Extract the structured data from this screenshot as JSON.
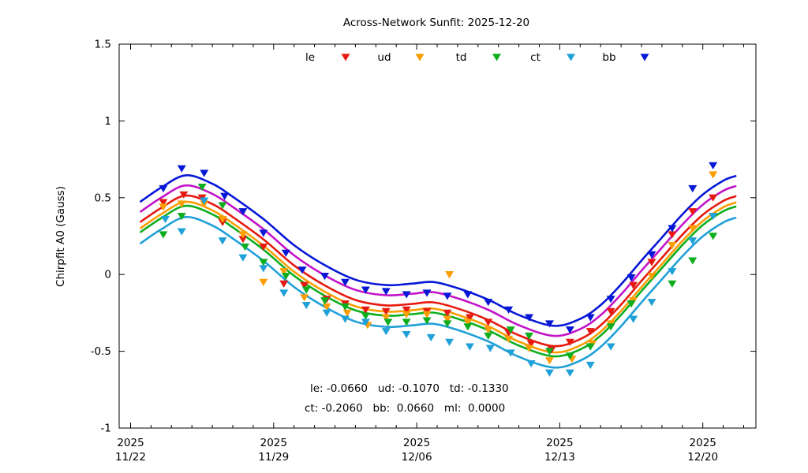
{
  "chart_data": {
    "type": "line+scatter",
    "title": "Across-Network Sunfit: 2025-12-20",
    "ylabel": "Chirpfit A0 (Gauss)",
    "marker": "triangle-down",
    "grid": false,
    "legend_position": "top-inside-horizontal",
    "x_axis": {
      "unit": "days since 2025-11-22",
      "range_days": [
        -0.56,
        30.6
      ],
      "minor_tick_every_days": 1,
      "major_ticks": [
        {
          "t": 0,
          "year": "2025",
          "date": "11/22"
        },
        {
          "t": 7,
          "year": "2025",
          "date": "11/29"
        },
        {
          "t": 14,
          "year": "2025",
          "date": "12/06"
        },
        {
          "t": 21,
          "year": "2025",
          "date": "12/13"
        },
        {
          "t": 28,
          "year": "2025",
          "date": "12/20"
        }
      ]
    },
    "y_axis": {
      "range": [
        -1,
        1.5
      ],
      "ticks": [
        {
          "v": 1.5,
          "label": "1.5"
        },
        {
          "v": 1.0,
          "label": "1"
        },
        {
          "v": 0.5,
          "label": "0.5"
        },
        {
          "v": 0.0,
          "label": "0"
        },
        {
          "v": -0.5,
          "label": "-0.5"
        },
        {
          "v": -1.0,
          "label": "-1"
        }
      ]
    },
    "legend": [
      {
        "id": "le",
        "label": "le",
        "color": "#e61a10"
      },
      {
        "id": "ud",
        "label": "ud",
        "color": "#fb9e04"
      },
      {
        "id": "td",
        "label": "td",
        "color": "#0cae1e"
      },
      {
        "id": "ct",
        "label": "ct",
        "color": "#1fa0d8"
      },
      {
        "id": "bb",
        "label": "bb",
        "color": "#0617d6"
      }
    ],
    "base_curve_ml": {
      "comment": "shared chirp-fit shape; each network curve = base + offset",
      "t": [
        0.5,
        1.5,
        2.7,
        4.0,
        5.0,
        6.5,
        8.0,
        9.5,
        11.0,
        12.5,
        13.8,
        14.8,
        16.0,
        17.5,
        19.0,
        20.7,
        22.0,
        23.0,
        24.0,
        25.0,
        26.0,
        27.0,
        28.0,
        29.0,
        29.6
      ],
      "v": [
        0.41,
        0.5,
        0.58,
        0.525,
        0.44,
        0.295,
        0.125,
        -0.005,
        -0.1,
        -0.135,
        -0.125,
        -0.115,
        -0.155,
        -0.23,
        -0.33,
        -0.4,
        -0.355,
        -0.265,
        -0.13,
        0.025,
        0.175,
        0.325,
        0.455,
        0.545,
        0.575
      ]
    },
    "series": [
      {
        "id": "ct",
        "color": "#1fa0d8",
        "offset": -0.206,
        "points": [
          [
            1.7,
            0.36
          ],
          [
            2.5,
            0.28
          ],
          [
            3.6,
            0.48
          ],
          [
            4.5,
            0.22
          ],
          [
            5.5,
            0.11
          ],
          [
            6.5,
            0.04
          ],
          [
            7.5,
            -0.12
          ],
          [
            8.6,
            -0.2
          ],
          [
            9.6,
            -0.25
          ],
          [
            10.5,
            -0.29
          ],
          [
            11.5,
            -0.31
          ],
          [
            12.5,
            -0.37
          ],
          [
            13.5,
            -0.39
          ],
          [
            14.7,
            -0.41
          ],
          [
            15.6,
            -0.44
          ],
          [
            16.6,
            -0.47
          ],
          [
            17.6,
            -0.48
          ],
          [
            18.6,
            -0.51
          ],
          [
            19.6,
            -0.58
          ],
          [
            20.5,
            -0.64
          ],
          [
            21.5,
            -0.64
          ],
          [
            22.5,
            -0.59
          ],
          [
            23.5,
            -0.47
          ],
          [
            24.6,
            -0.29
          ],
          [
            25.5,
            -0.18
          ],
          [
            26.5,
            0.02
          ],
          [
            27.5,
            0.22
          ],
          [
            28.5,
            0.38
          ]
        ]
      },
      {
        "id": "td",
        "color": "#0cae1e",
        "offset": -0.133,
        "points": [
          [
            1.6,
            0.26
          ],
          [
            2.5,
            0.38
          ],
          [
            3.5,
            0.57
          ],
          [
            4.5,
            0.45
          ],
          [
            5.6,
            0.18
          ],
          [
            6.5,
            0.08
          ],
          [
            7.6,
            -0.01
          ],
          [
            8.6,
            -0.1
          ],
          [
            9.5,
            -0.17
          ],
          [
            10.5,
            -0.21
          ],
          [
            11.5,
            -0.27
          ],
          [
            12.6,
            -0.31
          ],
          [
            13.5,
            -0.31
          ],
          [
            14.5,
            -0.3
          ],
          [
            15.5,
            -0.32
          ],
          [
            16.5,
            -0.34
          ],
          [
            17.5,
            -0.4
          ],
          [
            18.6,
            -0.36
          ],
          [
            19.5,
            -0.4
          ],
          [
            20.5,
            -0.5
          ],
          [
            21.5,
            -0.53
          ],
          [
            22.5,
            -0.47
          ],
          [
            23.5,
            -0.34
          ],
          [
            24.5,
            -0.19
          ],
          [
            26.5,
            -0.06
          ],
          [
            27.5,
            0.09
          ],
          [
            28.5,
            0.25
          ]
        ]
      },
      {
        "id": "ud",
        "color": "#fb9e04",
        "offset": -0.107,
        "points": [
          [
            1.6,
            0.44
          ],
          [
            2.5,
            0.46
          ],
          [
            3.6,
            0.46
          ],
          [
            4.5,
            0.36
          ],
          [
            5.5,
            0.26
          ],
          [
            6.5,
            -0.05
          ],
          [
            7.5,
            0.02
          ],
          [
            8.5,
            -0.15
          ],
          [
            9.6,
            -0.21
          ],
          [
            10.6,
            -0.25
          ],
          [
            11.6,
            -0.33
          ],
          [
            12.5,
            -0.28
          ],
          [
            13.5,
            -0.26
          ],
          [
            14.5,
            -0.26
          ],
          [
            15.5,
            -0.29
          ],
          [
            15.6,
            0.0
          ],
          [
            16.5,
            -0.31
          ],
          [
            17.5,
            -0.36
          ],
          [
            18.5,
            -0.42
          ],
          [
            19.5,
            -0.48
          ],
          [
            20.5,
            -0.56
          ],
          [
            21.6,
            -0.55
          ],
          [
            22.6,
            -0.45
          ],
          [
            23.5,
            -0.32
          ],
          [
            24.6,
            -0.17
          ],
          [
            25.5,
            -0.01
          ],
          [
            26.5,
            0.19
          ],
          [
            27.5,
            0.3
          ],
          [
            28.5,
            0.65
          ]
        ]
      },
      {
        "id": "le",
        "color": "#e61a10",
        "offset": -0.066,
        "points": [
          [
            1.6,
            0.47
          ],
          [
            2.6,
            0.52
          ],
          [
            3.5,
            0.5
          ],
          [
            4.5,
            0.34
          ],
          [
            5.5,
            0.23
          ],
          [
            6.5,
            0.18
          ],
          [
            7.5,
            -0.06
          ],
          [
            8.5,
            -0.07
          ],
          [
            9.6,
            -0.16
          ],
          [
            10.5,
            -0.19
          ],
          [
            11.5,
            -0.23
          ],
          [
            12.5,
            -0.24
          ],
          [
            13.5,
            -0.23
          ],
          [
            14.5,
            -0.24
          ],
          [
            15.5,
            -0.25
          ],
          [
            16.6,
            -0.28
          ],
          [
            17.5,
            -0.31
          ],
          [
            18.5,
            -0.38
          ],
          [
            19.6,
            -0.45
          ],
          [
            20.6,
            -0.49
          ],
          [
            21.5,
            -0.44
          ],
          [
            22.5,
            -0.37
          ],
          [
            23.5,
            -0.24
          ],
          [
            24.6,
            -0.07
          ],
          [
            25.5,
            0.08
          ],
          [
            26.5,
            0.26
          ],
          [
            27.5,
            0.41
          ],
          [
            28.5,
            0.5
          ]
        ]
      },
      {
        "id": "ml",
        "color": "#c214c8",
        "offset": 0.0,
        "points": []
      },
      {
        "id": "bb",
        "color": "#0617d6",
        "offset": 0.066,
        "points": [
          [
            1.6,
            0.56
          ],
          [
            2.5,
            0.69
          ],
          [
            3.6,
            0.66
          ],
          [
            4.6,
            0.51
          ],
          [
            5.5,
            0.41
          ],
          [
            6.5,
            0.27
          ],
          [
            7.6,
            0.14
          ],
          [
            8.4,
            0.03
          ],
          [
            9.5,
            -0.01
          ],
          [
            10.5,
            -0.05
          ],
          [
            11.5,
            -0.1
          ],
          [
            12.5,
            -0.11
          ],
          [
            13.5,
            -0.13
          ],
          [
            14.5,
            -0.12
          ],
          [
            15.5,
            -0.14
          ],
          [
            16.5,
            -0.13
          ],
          [
            17.5,
            -0.18
          ],
          [
            18.5,
            -0.23
          ],
          [
            19.5,
            -0.28
          ],
          [
            20.5,
            -0.32
          ],
          [
            21.5,
            -0.36
          ],
          [
            22.5,
            -0.28
          ],
          [
            23.5,
            -0.16
          ],
          [
            24.5,
            -0.02
          ],
          [
            25.5,
            0.13
          ],
          [
            26.5,
            0.3
          ],
          [
            27.5,
            0.56
          ],
          [
            28.5,
            0.71
          ]
        ]
      }
    ],
    "fit_offsets": {
      "le": -0.066,
      "ud": -0.107,
      "td": -0.133,
      "ct": -0.206,
      "bb": 0.066,
      "ml": 0.0
    },
    "annotations": [
      "le: -0.0660   ud: -0.1070   td: -0.1330",
      "ct: -0.2060   bb:  0.0660   ml:  0.0000"
    ]
  }
}
